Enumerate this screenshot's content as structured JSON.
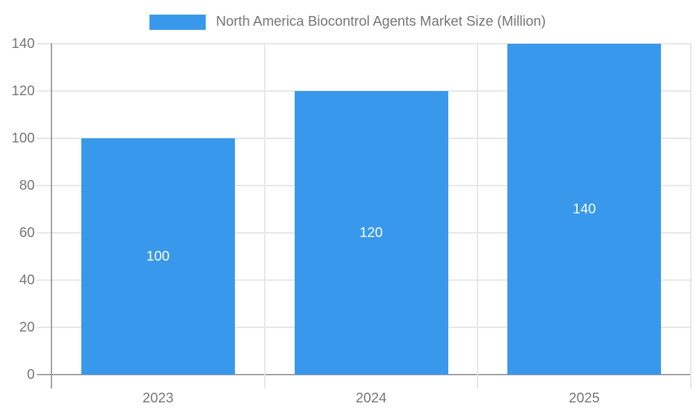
{
  "chart_data": {
    "type": "bar",
    "title": "",
    "legend_label": "North America Biocontrol Agents Market Size (Million)",
    "legend_position": "top-center",
    "categories": [
      "2023",
      "2024",
      "2025"
    ],
    "series": [
      {
        "name": "North America Biocontrol Agents Market Size (Million)",
        "values": [
          100,
          120,
          140
        ],
        "data_labels": [
          "100",
          "120",
          "140"
        ]
      }
    ],
    "xlabel": "",
    "ylabel": "",
    "ylim": [
      0,
      140
    ],
    "yticks": [
      0,
      20,
      40,
      60,
      80,
      100,
      120,
      140
    ],
    "ytick_labels": [
      "0",
      "20",
      "40",
      "60",
      "80",
      "100",
      "120",
      "140"
    ],
    "grid": true,
    "data_label_position": "inside-center",
    "colors": {
      "bar": "#3898EC",
      "data_label_text": "#ffffff",
      "axis_line": "#9e9e9e",
      "gridline": "#e6e6e6",
      "tick_text": "#757575",
      "background": "#ffffff"
    }
  }
}
